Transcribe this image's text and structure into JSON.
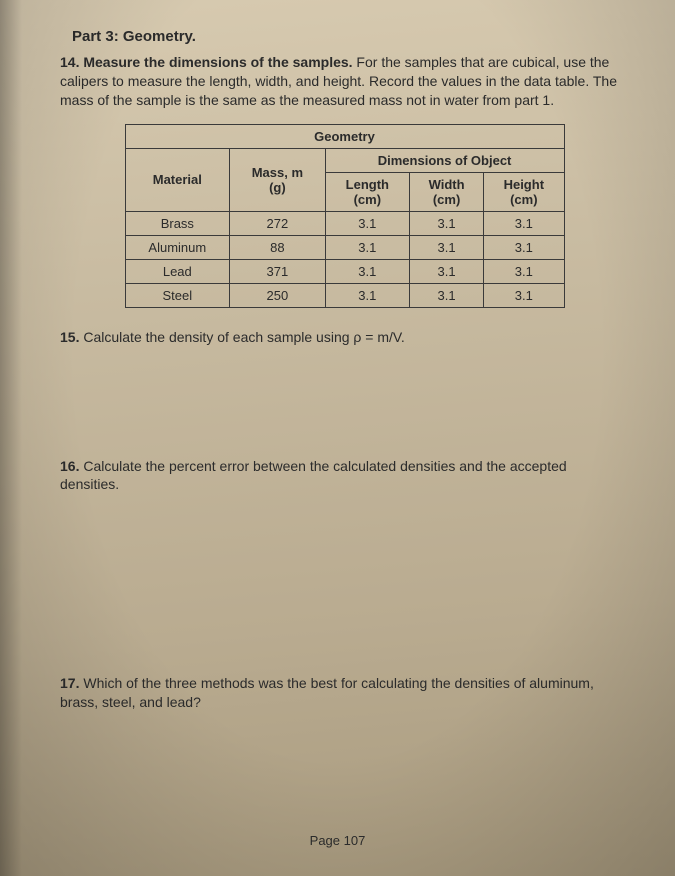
{
  "partTitle": "Part 3: Geometry.",
  "q14": {
    "num": "14.",
    "boldLead": "Measure the dimensions of the samples.",
    "rest": " For the samples that are cubical, use the calipers to measure the length, width, and height. Record the values in the data table. The mass of the sample is the same as the measured mass not in water from part 1."
  },
  "table": {
    "title": "Geometry",
    "colMaterial": "Material",
    "colMass": "Mass, m",
    "colMassUnit": "(g)",
    "dimHeader": "Dimensions of Object",
    "colLength": "Length",
    "colWidth": "Width",
    "colHeight": "Height",
    "unitCm": "(cm)",
    "rows": [
      {
        "material": "Brass",
        "mass": "272",
        "l": "3.1",
        "w": "3.1",
        "h": "3.1"
      },
      {
        "material": "Aluminum",
        "mass": "88",
        "l": "3.1",
        "w": "3.1",
        "h": "3.1"
      },
      {
        "material": "Lead",
        "mass": "371",
        "l": "3.1",
        "w": "3.1",
        "h": "3.1"
      },
      {
        "material": "Steel",
        "mass": "250",
        "l": "3.1",
        "w": "3.1",
        "h": "3.1"
      }
    ]
  },
  "q15": {
    "num": "15.",
    "text": "Calculate the density of each sample using ρ = m/V."
  },
  "q16": {
    "num": "16.",
    "text": "Calculate the percent error between the calculated densities and the accepted densities."
  },
  "q17": {
    "num": "17.",
    "text": "Which of the three methods was the best for calculating the densities of aluminum, brass, steel, and lead?"
  },
  "footer": "Page 107"
}
